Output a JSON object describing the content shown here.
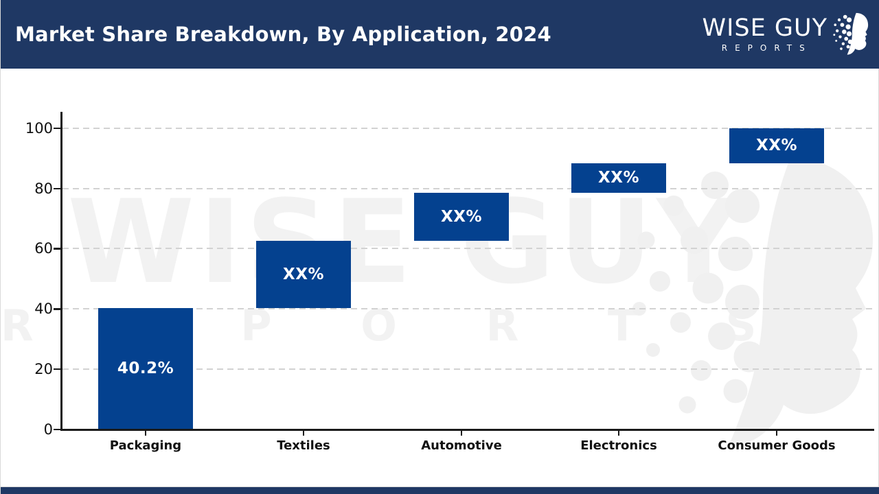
{
  "header": {
    "title": "Market Share Breakdown, By Application, 2024",
    "bg_color": "#1f3864",
    "logo": {
      "line1": "WISE GUY",
      "line2": "REPORTS",
      "head_icon": "dotted-face-profile"
    }
  },
  "watermark": {
    "line1": "WISE GUY",
    "line2": "R E P O R T S",
    "color": "#f2f2f2"
  },
  "chart_data": {
    "type": "bar",
    "subtype": "waterfall",
    "title": "Market Share Breakdown, By Application, 2024",
    "xlabel": "",
    "ylabel": "",
    "categories": [
      "Packaging",
      "Textiles",
      "Automotive",
      "Electronics",
      "Consumer Goods"
    ],
    "segments": [
      {
        "category": "Packaging",
        "start": 0,
        "end": 40.2,
        "value": 40.2,
        "label": "40.2%"
      },
      {
        "category": "Textiles",
        "start": 40.2,
        "end": 62.5,
        "value": 22.3,
        "label": "XX%"
      },
      {
        "category": "Automotive",
        "start": 62.5,
        "end": 78.6,
        "value": 16.1,
        "label": "XX%"
      },
      {
        "category": "Electronics",
        "start": 78.6,
        "end": 88.3,
        "value": 9.7,
        "label": "XX%"
      },
      {
        "category": "Consumer Goods",
        "start": 88.3,
        "end": 100,
        "value": 11.7,
        "label": "XX%"
      }
    ],
    "yticks": [
      0,
      20,
      40,
      60,
      80,
      100
    ],
    "ylim": [
      0,
      105
    ],
    "grid": "horizontal-dashed",
    "legend": "none",
    "bar_color": "#04418f",
    "bar_label_color": "#ffffff",
    "axis_color": "#1a1a1a",
    "gridline_color": "#d2d2d2"
  },
  "footer": {
    "bg_color": "#1f3864"
  }
}
